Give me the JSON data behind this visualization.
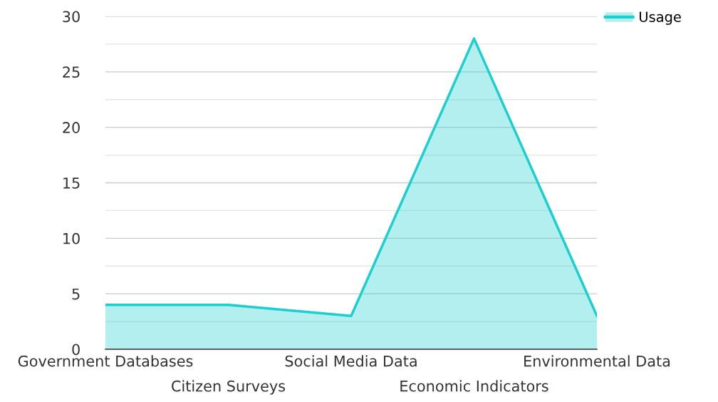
{
  "chart_data": {
    "type": "area",
    "categories": [
      "Government Databases",
      "Citizen Surveys",
      "Social Media Data",
      "Economic Indicators",
      "Environmental Data"
    ],
    "series": [
      {
        "name": "Usage",
        "color": "#1ccfcf",
        "values": [
          4,
          4,
          3,
          28,
          3
        ]
      }
    ],
    "ylim": [
      0,
      30
    ],
    "yticks": [
      0,
      {
        "value": 2.5,
        "label": null
      },
      5,
      {
        "value": 7.5,
        "label": null
      },
      10,
      {
        "value": 12.5,
        "label": null
      },
      15,
      {
        "value": 17.5,
        "label": null
      },
      20,
      {
        "value": 22.5,
        "label": null
      },
      25,
      {
        "value": 27.5,
        "label": null
      },
      30
    ],
    "grid": "y",
    "legend": "top right"
  }
}
